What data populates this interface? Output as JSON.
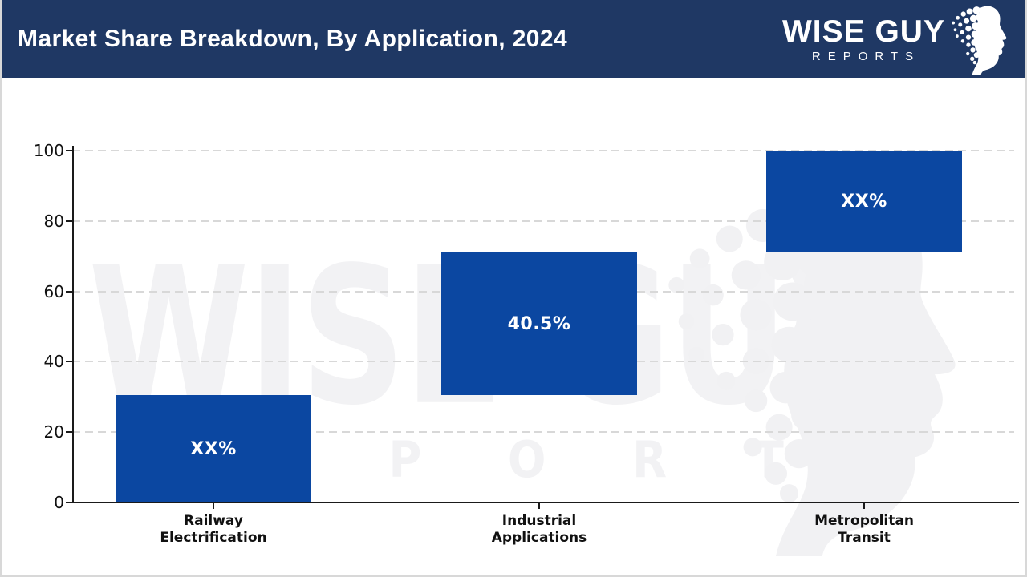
{
  "header": {
    "title": "Market Share Breakdown, By Application, 2024",
    "logo": {
      "brand": "WISE GUY",
      "sub": "REPORTS"
    }
  },
  "watermark": {
    "brand": "WISE GUY",
    "sub": "R E P O R T S"
  },
  "chart_data": {
    "type": "bar",
    "variant": "floating-segment stacked share breakdown (waterfall-style)",
    "title": "Market Share Breakdown, By Application, 2024",
    "categories": [
      [
        "Railway",
        "Electrification"
      ],
      [
        "Industrial",
        "Applications"
      ],
      [
        "Metropolitan",
        "Transit"
      ]
    ],
    "bars": [
      {
        "category": "Railway Electrification",
        "label": "XX%",
        "start": 0,
        "end": 30.5
      },
      {
        "category": "Industrial Applications",
        "label": "40.5%",
        "start": 30.5,
        "end": 71
      },
      {
        "category": "Metropolitan Transit",
        "label": "XX%",
        "start": 71,
        "end": 100
      }
    ],
    "yticks": [
      0,
      20,
      40,
      60,
      80,
      100
    ],
    "ylim": [
      0,
      105
    ],
    "xlabel": "",
    "ylabel": "",
    "grid": "horizontal-dashed",
    "legend": "none",
    "bar_color": "#0B47A1",
    "bar_label_color": "#FFFFFF"
  },
  "colors": {
    "header_bg": "#1F3864",
    "bar": "#0B47A1",
    "gridline": "#D8D8D8",
    "axis": "#1A1A1A",
    "watermark": "#F2F2F4",
    "page_border": "#D8D8D8"
  }
}
